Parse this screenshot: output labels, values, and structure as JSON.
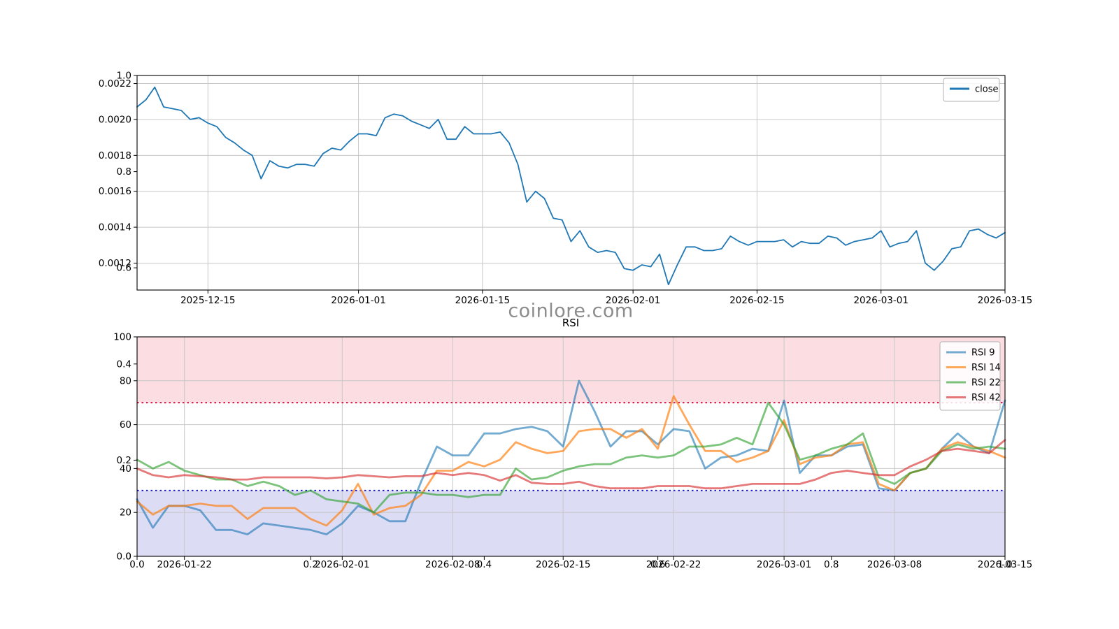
{
  "watermark": "coinlore.com",
  "hidden_axis": {
    "x_labels": [
      "0.0",
      "0.2",
      "0.4",
      "0.6",
      "0.8",
      "1.0"
    ],
    "y_labels": [
      "1.0",
      "0.8",
      "0.6",
      "0.4",
      "0.2",
      "0.0"
    ]
  },
  "chart_data": [
    {
      "type": "line",
      "panel": "price",
      "title": "",
      "legend_position": "upper right",
      "grid": true,
      "x_start_date": "2025-12-07",
      "x_step": "1 day",
      "x_tick_labels": [
        "2025-12-15",
        "2026-01-01",
        "2026-01-15",
        "2026-02-01",
        "2026-02-15",
        "2026-03-01",
        "2026-03-15"
      ],
      "x_tick_day_index": [
        8,
        25,
        39,
        56,
        70,
        84,
        98
      ],
      "y_tick_labels": [
        "0.0022",
        "0.0020",
        "0.0018",
        "0.0016",
        "0.0014",
        "0.0012"
      ],
      "y_tick_values": [
        0.0022,
        0.002,
        0.0018,
        0.0016,
        0.0014,
        0.0012
      ],
      "ylim": [
        0.00105,
        0.002245
      ],
      "series": [
        {
          "name": "close",
          "color": "#1f77b4",
          "opacity": 1,
          "width": 1.8,
          "values": [
            0.00207,
            0.00211,
            0.00218,
            0.00207,
            0.00206,
            0.00205,
            0.002,
            0.00201,
            0.00198,
            0.00196,
            0.0019,
            0.00187,
            0.00183,
            0.0018,
            0.00167,
            0.00177,
            0.00174,
            0.00173,
            0.00175,
            0.00175,
            0.00174,
            0.00181,
            0.00184,
            0.00183,
            0.00188,
            0.00192,
            0.00192,
            0.00191,
            0.00201,
            0.00203,
            0.00202,
            0.00199,
            0.00197,
            0.00195,
            0.002,
            0.00189,
            0.00189,
            0.00196,
            0.00192,
            0.00192,
            0.00192,
            0.00193,
            0.00187,
            0.00175,
            0.00154,
            0.0016,
            0.00156,
            0.00145,
            0.00144,
            0.00132,
            0.00138,
            0.00129,
            0.00126,
            0.00127,
            0.00126,
            0.00117,
            0.00116,
            0.00119,
            0.00118,
            0.00125,
            0.00108,
            0.00119,
            0.00129,
            0.00129,
            0.00127,
            0.00127,
            0.00128,
            0.00135,
            0.00132,
            0.0013,
            0.00132,
            0.00132,
            0.00132,
            0.00133,
            0.00129,
            0.00132,
            0.00131,
            0.00131,
            0.00135,
            0.00134,
            0.0013,
            0.00132,
            0.00133,
            0.00134,
            0.00138,
            0.00129,
            0.00131,
            0.00132,
            0.00138,
            0.0012,
            0.00116,
            0.00121,
            0.00128,
            0.00129,
            0.00138,
            0.00139,
            0.00136,
            0.00134,
            0.00137
          ]
        }
      ]
    },
    {
      "type": "line",
      "panel": "rsi",
      "title": "RSI",
      "legend_position": "upper right",
      "grid": true,
      "x_start_date": "2026-01-19",
      "x_step": "1 day",
      "x_tick_labels": [
        "2026-01-22",
        "2026-02-01",
        "2026-02-08",
        "2026-02-15",
        "2026-02-22",
        "2026-03-01",
        "2026-03-08",
        "2026-03-15"
      ],
      "x_tick_day_index": [
        3,
        13,
        20,
        27,
        34,
        41,
        48,
        55
      ],
      "y_tick_labels": [
        "100",
        "80",
        "60",
        "40",
        "20",
        "0"
      ],
      "y_tick_values": [
        100,
        80,
        60,
        40,
        20,
        0
      ],
      "ylim": [
        0,
        100
      ],
      "overbought": {
        "level": 70,
        "band_color": "#fbdde2",
        "line_color": "#d40037"
      },
      "oversold": {
        "level": 30,
        "band_color": "#dddcf5",
        "line_color": "#1313cc"
      },
      "series": [
        {
          "name": "RSI 9",
          "color": "#1f77b4",
          "opacity": 0.62,
          "width": 2.8,
          "values": [
            26,
            13,
            23,
            23,
            21,
            12,
            12,
            10,
            15,
            14,
            13,
            12,
            10,
            15,
            23,
            20,
            16,
            16,
            34,
            50,
            46,
            46,
            56,
            56,
            58,
            59,
            57,
            50,
            80,
            66,
            50,
            57,
            57,
            51,
            58,
            57,
            40,
            45,
            46,
            49,
            48,
            71,
            38,
            46,
            46,
            50,
            51,
            31,
            30,
            38,
            40,
            49,
            56,
            50,
            47,
            71
          ]
        },
        {
          "name": "RSI 14",
          "color": "#ff7f0e",
          "opacity": 0.68,
          "width": 2.8,
          "values": [
            25,
            19,
            23,
            23,
            24,
            23,
            23,
            17,
            22,
            22,
            22,
            17,
            14,
            21,
            33,
            19,
            22,
            23,
            28,
            39,
            39,
            43,
            41,
            44,
            52,
            49,
            47,
            48,
            57,
            58,
            58,
            54,
            58,
            49,
            73,
            60,
            48,
            48,
            43,
            45,
            48,
            62,
            42,
            45,
            46,
            51,
            52,
            33,
            30,
            38,
            40,
            49,
            52,
            50,
            48,
            45
          ]
        },
        {
          "name": "RSI 22",
          "color": "#2ca02c",
          "opacity": 0.62,
          "width": 2.8,
          "values": [
            44,
            40,
            43,
            39,
            37,
            35,
            35,
            32,
            34,
            32,
            28,
            30,
            26,
            25,
            24,
            20,
            28,
            29,
            29,
            28,
            28,
            27,
            28,
            28,
            40,
            35,
            36,
            39,
            41,
            42,
            42,
            45,
            46,
            45,
            46,
            50,
            50,
            51,
            54,
            51,
            70,
            60,
            44,
            46,
            49,
            51,
            56,
            36,
            33,
            38,
            40,
            48,
            51,
            49,
            50,
            49
          ]
        },
        {
          "name": "RSI 42",
          "color": "#d62728",
          "opacity": 0.62,
          "width": 2.8,
          "values": [
            40,
            37,
            36,
            37,
            36.5,
            36,
            35,
            35,
            36,
            36,
            36,
            36,
            35.5,
            36,
            37,
            36.5,
            36,
            36.5,
            36.5,
            38,
            37,
            38,
            37,
            34.5,
            37,
            33.5,
            33,
            33,
            34,
            32,
            31,
            31,
            31,
            32,
            32,
            32,
            31,
            31,
            32,
            33,
            33,
            33,
            33,
            35,
            38,
            39,
            38,
            37,
            37,
            41,
            44,
            48,
            49,
            48,
            47,
            53
          ]
        }
      ]
    }
  ],
  "style": {
    "grid_color": "#c8c8c8",
    "spine_color": "#000000",
    "legend_border": "#b0b0b0",
    "watermark_color": "#8c8c8c"
  }
}
